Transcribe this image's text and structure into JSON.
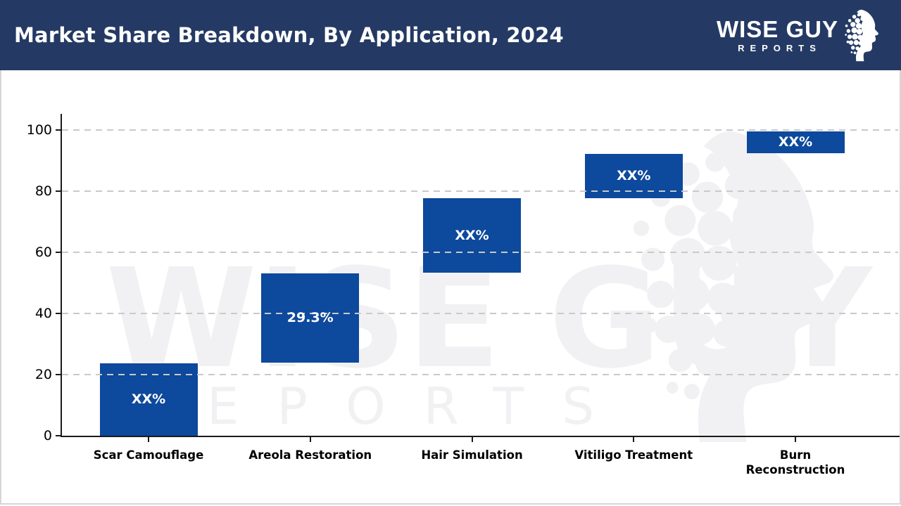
{
  "header": {
    "title": "Market Share Breakdown, By Application, 2024",
    "logo": {
      "line1": "WISE GUY",
      "line2": "REPORTS"
    }
  },
  "watermark": {
    "line1": "WISE GUY",
    "line2": "REPORTS"
  },
  "colors": {
    "header_bg": "#243a64",
    "bar": "#0d499c",
    "bar_label": "#ffffff",
    "grid": "#c9c9c9",
    "axis": "#1a1a1a",
    "watermark": "#f1f1f3",
    "title_text": "#ffffff"
  },
  "chart_data": {
    "type": "bar",
    "subtype": "waterfall",
    "title": "Market Share Breakdown, By Application, 2024",
    "xlabel": "",
    "ylabel": "",
    "ylim": [
      0,
      100
    ],
    "yticks": [
      0,
      20,
      40,
      60,
      80,
      100
    ],
    "grid": "horizontal dashed, drawn over bars",
    "legend": "none",
    "categories": [
      "Scar Camouflage",
      "Areola Restoration",
      "Hair Simulation",
      "Vitiligo Treatment",
      "Burn Reconstruction"
    ],
    "xtick_labels": [
      "Scar Camouflage",
      "Areola Restoration",
      "Hair Simulation",
      "Vitiligo Treatment",
      "Burn\nReconstruction"
    ],
    "bars": [
      {
        "category": "Scar Camouflage",
        "start": 0.0,
        "end": 23.7,
        "value": 23.7,
        "label": "XX%"
      },
      {
        "category": "Areola Restoration",
        "start": 23.9,
        "end": 53.2,
        "value": 29.3,
        "label": "29.3%"
      },
      {
        "category": "Hair Simulation",
        "start": 53.3,
        "end": 77.6,
        "value": 24.3,
        "label": "XX%"
      },
      {
        "category": "Vitiligo Treatment",
        "start": 77.7,
        "end": 92.2,
        "value": 14.5,
        "label": "XX%"
      },
      {
        "category": "Burn Reconstruction",
        "start": 92.5,
        "end": 99.5,
        "value": 7.0,
        "label": "XX%"
      }
    ]
  }
}
